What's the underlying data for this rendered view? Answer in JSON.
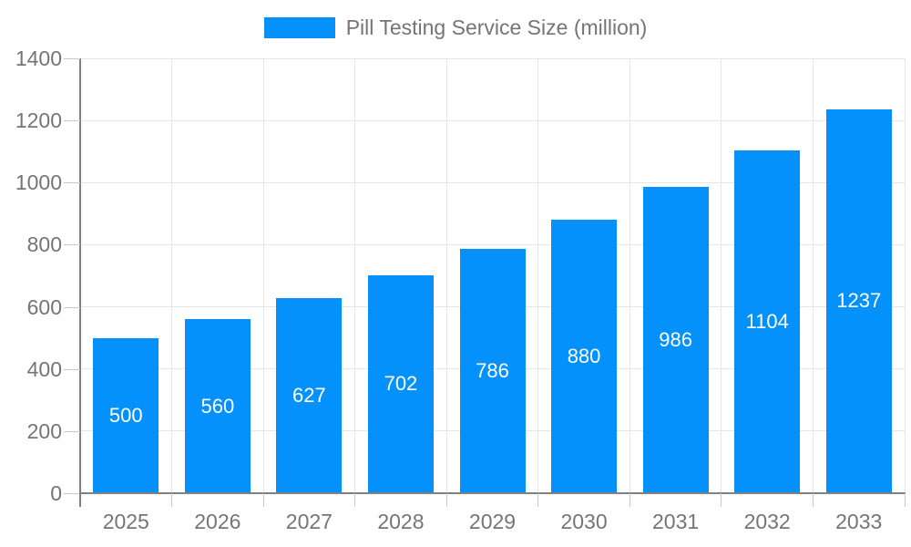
{
  "legend": {
    "label": "Pill Testing Service Size (million)",
    "position": "top-center"
  },
  "chart_data": {
    "type": "bar",
    "title": "Pill Testing Service Size (million)",
    "categories": [
      "2025",
      "2026",
      "2027",
      "2028",
      "2029",
      "2030",
      "2031",
      "2032",
      "2033"
    ],
    "values": [
      500,
      560,
      627,
      702,
      786,
      880,
      986,
      1104,
      1237
    ],
    "value_labels": [
      "500",
      "560",
      "627",
      "702",
      "786",
      "880",
      "986",
      "1104",
      "1237"
    ],
    "xlabel": "",
    "ylabel": "",
    "ylim": [
      0,
      1400
    ],
    "yticks": [
      0,
      200,
      400,
      600,
      800,
      1000,
      1200,
      1400
    ],
    "grid": true,
    "legend_position": "top",
    "series": [
      {
        "name": "Pill Testing Service Size (million)",
        "values": [
          500,
          560,
          627,
          702,
          786,
          880,
          986,
          1104,
          1237
        ]
      }
    ]
  },
  "colors": {
    "bar": "#0591fb",
    "axis_line": "#808080",
    "grid_line": "#e6e6e6",
    "tick_line": "#c9c9c9",
    "axis_text": "#757575",
    "legend_text": "#757575",
    "value_text": "#ffffff",
    "background": "#ffffff"
  }
}
